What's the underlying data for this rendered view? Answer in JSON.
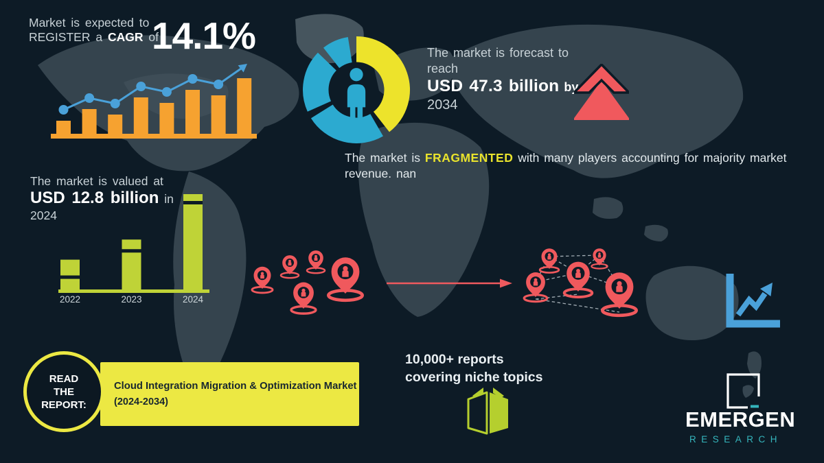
{
  "colors": {
    "background": "#0d1b26",
    "map": "#35444e",
    "map_light": "#46555e",
    "orange": "#f6a230",
    "blue": "#4aa1d9",
    "teal": "#2caad0",
    "donut_yellow": "#ede32b",
    "green": "#bfd337",
    "red": "#f0595d",
    "highlight_yellow": "#e9e32c",
    "box_yellow": "#ece843",
    "text_light": "#c8d2d7",
    "text_white": "#ffffff",
    "logo_teal": "#35b6bd",
    "dark_text": "#18272f"
  },
  "cagr": {
    "line1": "Market is expected to",
    "line2_pre": "REGISTER a",
    "line2_bold": "CAGR",
    "line2_post": "of",
    "value": "14.1%"
  },
  "forecast": {
    "line1": "The market is forecast to",
    "line2": "reach",
    "value": "USD 47.3 billion",
    "by": "by",
    "year": "2034"
  },
  "fragmented": {
    "line1_pre": "The market is",
    "highlight": "FRAGMENTED",
    "line1_post": "with many players accounting for majority market",
    "line2": "revenue. nan"
  },
  "valuation": {
    "line1": "The market is valued at",
    "value": "USD 12.8 billion",
    "suffix": "in",
    "year": "2024"
  },
  "reports": {
    "line1": "10,000+ reports",
    "line2": "covering niche topics"
  },
  "read_report": {
    "circle_line1": "READ",
    "circle_line2": "THE",
    "circle_line3": "REPORT:",
    "title": "Cloud Integration Migration & Optimization Market",
    "period": "(2024-2034)"
  },
  "logo": {
    "brand": "EMERGEN",
    "division": "RESEARCH"
  },
  "icons": {
    "donut-person": "person-silhouette",
    "growth-arrow": "double-triangle-up",
    "location-pin": "map-pin-with-person",
    "flow-arrow": "thin-right-arrow",
    "book": "open-book",
    "line-chart": "axes-with-zigzag-arrow",
    "logo-square": "open-square-with-teal-mark"
  },
  "chart_data": [
    {
      "type": "bar",
      "name": "market-valuation-by-year",
      "categories": [
        "2022",
        "2023",
        "2024"
      ],
      "values": [
        4.0,
        6.7,
        12.8
      ],
      "unit": "USD billion",
      "bar_color": "#bfd337",
      "note": "Only the 2024 value (USD 12.8 billion) is stated on the infographic; 2022-2023 estimated from bar heights",
      "grid": false,
      "value_labels_shown": false
    },
    {
      "type": "bar",
      "name": "cagr-growth-trend-decorative",
      "categories": [
        "1",
        "2",
        "3",
        "4",
        "5",
        "6",
        "7",
        "8"
      ],
      "values": [
        19,
        36,
        28,
        53,
        45,
        64,
        56,
        81
      ],
      "unit": "relative height (decorative, no axis labels)",
      "bar_color": "#f6a230",
      "line_color": "#4aa1d9",
      "overlay": "zigzag dot-line rising to an arrow"
    },
    {
      "type": "pie",
      "name": "forecast-donut-decorative",
      "donut": true,
      "slices": [
        {
          "label": "yellow-segment",
          "pct": 40,
          "color": "#ede32b"
        },
        {
          "label": "teal-segments",
          "pct": 60,
          "color": "#2caad0"
        }
      ]
    }
  ]
}
